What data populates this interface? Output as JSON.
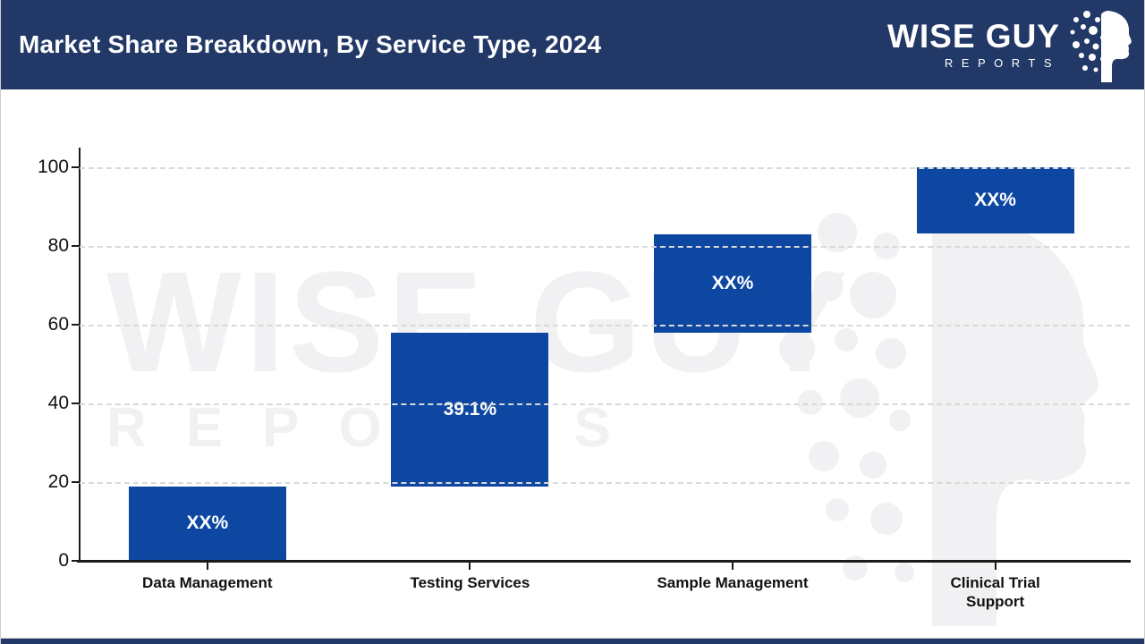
{
  "header": {
    "title": "Market Share Breakdown, By Service Type, 2024",
    "logo": {
      "line1": "WISE GUY",
      "line2": "REPORTS"
    }
  },
  "watermark": {
    "line1": "WISE GUY",
    "line2": "REPORTS"
  },
  "colors": {
    "header_bg": "#223968",
    "bar": "#0d47a1",
    "gridline": "#d9d9d9",
    "watermark": "#f1f1f3",
    "axis": "#1a1a1a",
    "bar_label": "#ffffff"
  },
  "chart_data": {
    "type": "bar",
    "subtype": "waterfall",
    "title": "Market Share Breakdown, By Service Type, 2024",
    "xlabel": "",
    "ylabel": "",
    "ylim": [
      0,
      100
    ],
    "yticks": [
      0,
      20,
      40,
      60,
      80,
      100
    ],
    "grid": "horizontal-dashed-over-bars",
    "legend": "none",
    "categories": [
      "Data Management",
      "Testing Services",
      "Sample Management",
      "Clinical Trial Support"
    ],
    "segments": [
      {
        "category": "Data Management",
        "start": 0,
        "end": 18.9,
        "label": "XX%"
      },
      {
        "category": "Testing Services",
        "start": 18.9,
        "end": 58.0,
        "label": "39.1%"
      },
      {
        "category": "Sample Management",
        "start": 58.0,
        "end": 83.0,
        "label": "XX%"
      },
      {
        "category": "Clinical Trial Support",
        "start": 83.2,
        "end": 100,
        "label": "XX%"
      }
    ]
  }
}
